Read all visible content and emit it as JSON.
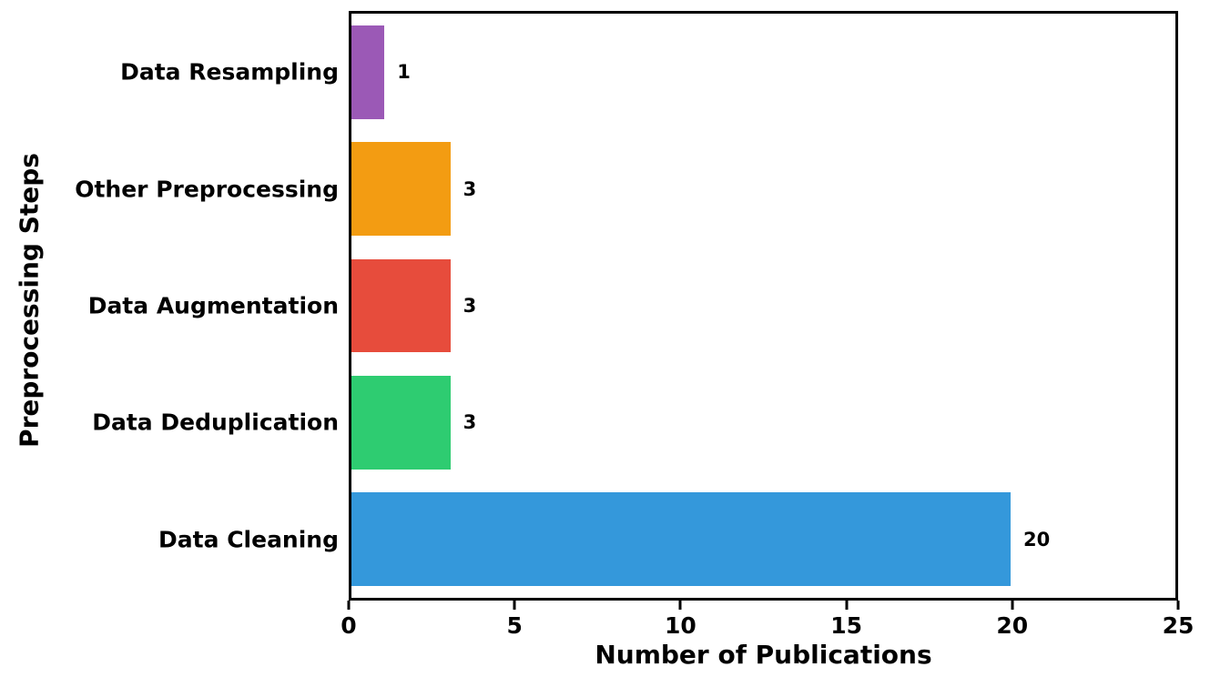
{
  "chart_data": {
    "type": "bar",
    "orientation": "horizontal",
    "title": "",
    "xlabel": "Number of Publications",
    "ylabel": "Preprocessing Steps",
    "categories_top_to_bottom": [
      "Data Resampling",
      "Other Preprocessing",
      "Data Augmentation",
      "Data Deduplication",
      "Data Cleaning"
    ],
    "values": [
      1,
      3,
      3,
      3,
      20
    ],
    "value_labels": [
      "1",
      "3",
      "3",
      "3",
      "20"
    ],
    "colors": [
      "#9b59b6",
      "#f39c12",
      "#e74c3c",
      "#2ecc71",
      "#3498db"
    ],
    "xlim": [
      0,
      25
    ],
    "xticks": [
      0,
      5,
      10,
      15,
      20,
      25
    ],
    "grid": false,
    "legend_position": "none",
    "bar_fraction_of_slot": 0.8
  }
}
